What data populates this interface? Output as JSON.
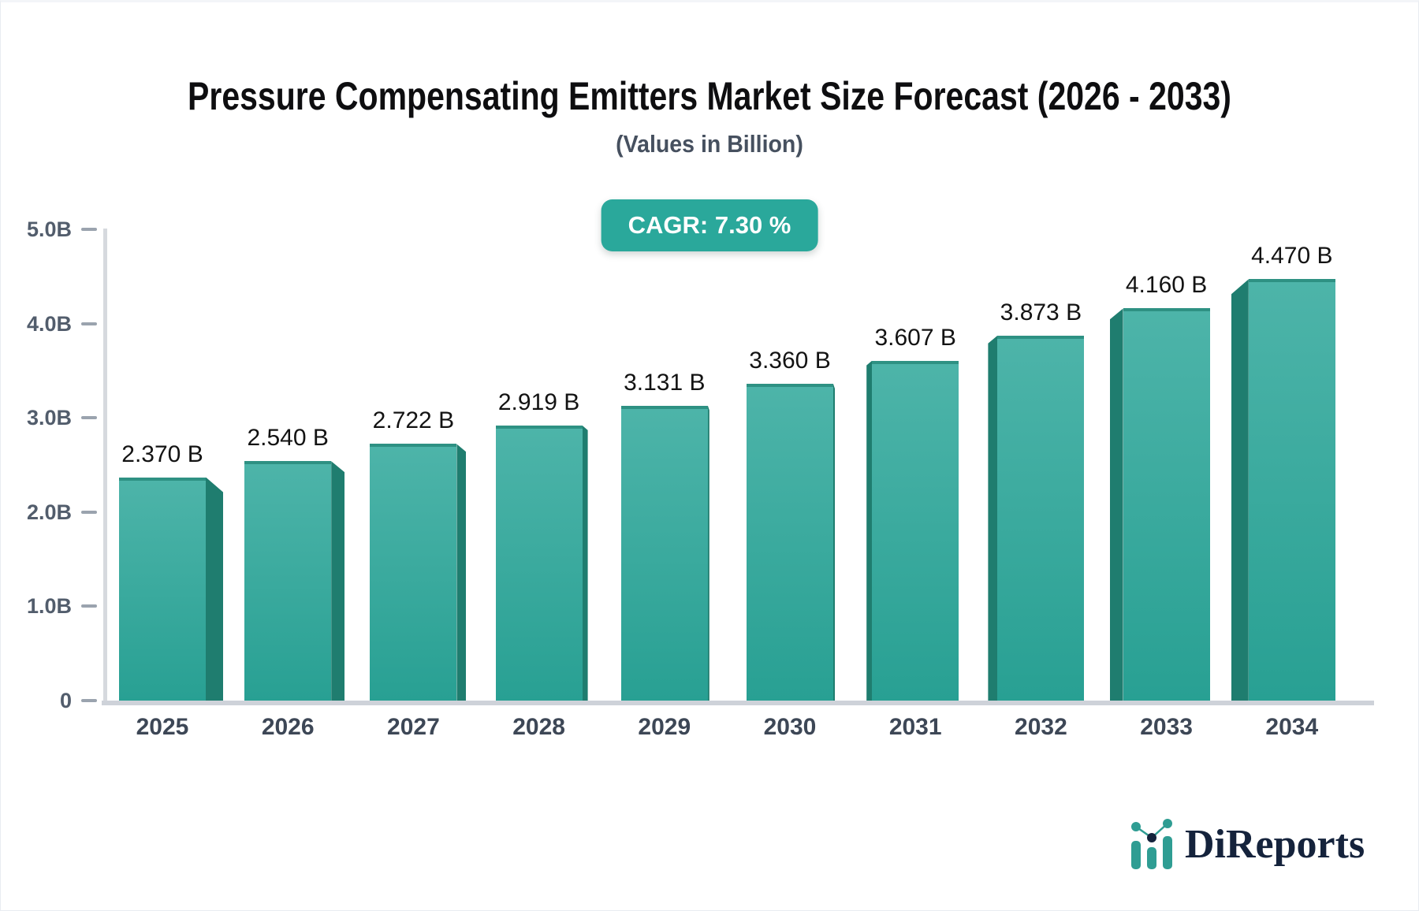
{
  "header": {
    "title": "Pressure Compensating Emitters Market Size Forecast (2026 - 2033)",
    "subtitle": "(Values in Billion)",
    "cagr_label": "CAGR: 7.30 %"
  },
  "chart_data": {
    "type": "bar",
    "title": "Pressure Compensating Emitters Market Size Forecast (2026 - 2033)",
    "subtitle": "(Values in Billion)",
    "cagr_pct": 7.3,
    "categories": [
      "2025",
      "2026",
      "2027",
      "2028",
      "2029",
      "2030",
      "2031",
      "2032",
      "2033",
      "2034"
    ],
    "values": [
      2.37,
      2.54,
      2.722,
      2.919,
      3.131,
      3.36,
      3.607,
      3.873,
      4.16,
      4.47
    ],
    "value_labels": [
      "2.370 B",
      "2.540 B",
      "2.722 B",
      "2.919 B",
      "3.131 B",
      "3.360 B",
      "3.607 B",
      "3.873 B",
      "4.160 B",
      "4.470 B"
    ],
    "xlabel": "",
    "ylabel": "",
    "ylim": [
      0,
      5
    ],
    "y_ticks": [
      {
        "label": "5.0B",
        "value": 5.0
      },
      {
        "label": "4.0B",
        "value": 4.0
      },
      {
        "label": "3.0B",
        "value": 3.0
      },
      {
        "label": "2.0B",
        "value": 2.0
      },
      {
        "label": "1.0B",
        "value": 1.0
      },
      {
        "label": "0",
        "value": 0.0
      }
    ],
    "grid": false,
    "legend": null,
    "bar_style_3d": true
  },
  "colors": {
    "accent": "#2aa89b",
    "bar_face_top": "#4db4a9",
    "bar_face_bottom": "#28a093",
    "bar_side": "#1f7d6f",
    "bar_top_edge": "#2e9183",
    "axis_line": "#d6d9de",
    "baseline": "#ced2d9",
    "tick": "#9aa3ae",
    "y_label": "#525d6c",
    "x_label": "#3d4756",
    "value_label": "#131313",
    "brand_navy": "#15233c",
    "brand_teal": "#2f9d93"
  },
  "footer": {
    "brand": "DiReports"
  }
}
